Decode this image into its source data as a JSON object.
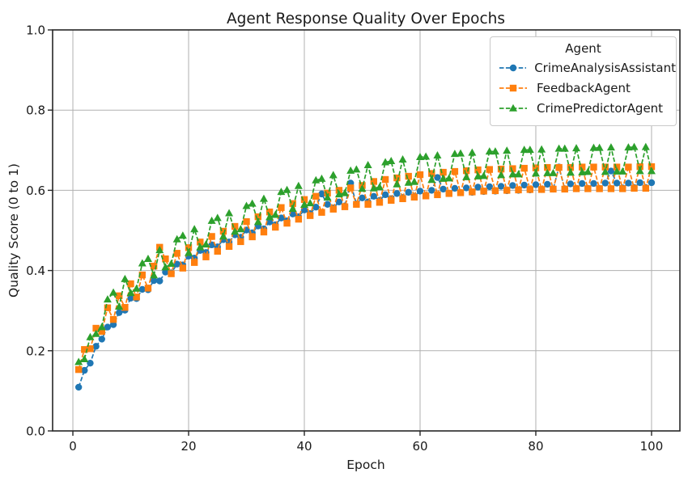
{
  "figure": {
    "background": "#ffffff",
    "text_color": "#1a1a1a",
    "grid_color": "#b0b0b0",
    "spine_color": "#262626"
  },
  "chart_data": {
    "type": "line",
    "title": "Agent Response Quality Over Epochs",
    "xlabel": "Epoch",
    "ylabel": "Quality Score (0 to 1)",
    "xlim": [
      -3.5,
      104.9
    ],
    "ylim": [
      0,
      1.0
    ],
    "x_ticks": [
      0,
      20,
      40,
      60,
      80,
      100
    ],
    "x_tick_labels": [
      "0",
      "20",
      "40",
      "60",
      "80",
      "100"
    ],
    "y_ticks": [
      0.0,
      0.2,
      0.4,
      0.6,
      0.8,
      1.0
    ],
    "y_tick_labels": [
      "0.0",
      "0.2",
      "0.4",
      "0.6",
      "0.8",
      "1.0"
    ],
    "grid": true,
    "legend_title": "Agent",
    "legend_position": "upper right",
    "line_style": "dashed",
    "x": [
      1,
      2,
      3,
      4,
      5,
      6,
      7,
      8,
      9,
      10,
      11,
      12,
      13,
      14,
      15,
      16,
      17,
      18,
      19,
      20,
      21,
      22,
      23,
      24,
      25,
      26,
      27,
      28,
      29,
      30,
      31,
      32,
      33,
      34,
      35,
      36,
      37,
      38,
      39,
      40,
      41,
      42,
      43,
      44,
      45,
      46,
      47,
      48,
      49,
      50,
      51,
      52,
      53,
      54,
      55,
      56,
      57,
      58,
      59,
      60,
      61,
      62,
      63,
      64,
      65,
      66,
      67,
      68,
      69,
      70,
      71,
      72,
      73,
      74,
      75,
      76,
      77,
      78,
      79,
      80,
      81,
      82,
      83,
      84,
      85,
      86,
      87,
      88,
      89,
      90,
      91,
      92,
      93,
      94,
      95,
      96,
      97,
      98,
      99,
      100
    ],
    "series": [
      {
        "name": "CrimeAnalysisAssistant",
        "color": "#1f77b4",
        "marker": "circle",
        "values": [
          0.109,
          0.151,
          0.169,
          0.211,
          0.229,
          0.259,
          0.265,
          0.295,
          0.301,
          0.331,
          0.33,
          0.353,
          0.352,
          0.375,
          0.374,
          0.396,
          0.394,
          0.416,
          0.414,
          0.436,
          0.431,
          0.45,
          0.445,
          0.464,
          0.459,
          0.477,
          0.471,
          0.489,
          0.483,
          0.501,
          0.494,
          0.511,
          0.504,
          0.521,
          0.514,
          0.531,
          0.524,
          0.541,
          0.534,
          0.551,
          0.542,
          0.558,
          0.591,
          0.565,
          0.556,
          0.571,
          0.561,
          0.618,
          0.566,
          0.581,
          0.571,
          0.585,
          0.575,
          0.589,
          0.579,
          0.592,
          0.582,
          0.595,
          0.585,
          0.598,
          0.587,
          0.6,
          0.632,
          0.603,
          0.592,
          0.605,
          0.594,
          0.606,
          0.595,
          0.608,
          0.597,
          0.609,
          0.598,
          0.61,
          0.599,
          0.612,
          0.6,
          0.613,
          0.601,
          0.614,
          0.602,
          0.615,
          0.603,
          0.658,
          0.604,
          0.616,
          0.604,
          0.617,
          0.605,
          0.617,
          0.605,
          0.618,
          0.648,
          0.618,
          0.606,
          0.618,
          0.607,
          0.619,
          0.607,
          0.619
        ]
      },
      {
        "name": "FeedbackAgent",
        "color": "#ff7f0e",
        "marker": "square",
        "values": [
          0.153,
          0.203,
          0.205,
          0.256,
          0.248,
          0.307,
          0.278,
          0.337,
          0.308,
          0.367,
          0.334,
          0.389,
          0.356,
          0.411,
          0.458,
          0.429,
          0.392,
          0.443,
          0.406,
          0.457,
          0.42,
          0.471,
          0.434,
          0.485,
          0.448,
          0.498,
          0.46,
          0.51,
          0.472,
          0.522,
          0.484,
          0.534,
          0.496,
          0.546,
          0.508,
          0.557,
          0.518,
          0.567,
          0.528,
          0.577,
          0.537,
          0.585,
          0.545,
          0.593,
          0.553,
          0.6,
          0.559,
          0.606,
          0.565,
          0.612,
          0.565,
          0.622,
          0.57,
          0.627,
          0.575,
          0.631,
          0.579,
          0.635,
          0.583,
          0.639,
          0.586,
          0.642,
          0.589,
          0.645,
          0.592,
          0.647,
          0.594,
          0.649,
          0.596,
          0.651,
          0.598,
          0.652,
          0.599,
          0.653,
          0.6,
          0.654,
          0.601,
          0.655,
          0.602,
          0.656,
          0.602,
          0.657,
          0.603,
          0.657,
          0.603,
          0.657,
          0.604,
          0.658,
          0.604,
          0.658,
          0.604,
          0.658,
          0.604,
          0.658,
          0.604,
          0.658,
          0.605,
          0.659,
          0.605,
          0.659
        ]
      },
      {
        "name": "CrimePredictorAgent",
        "color": "#2ca02c",
        "marker": "triangle-up",
        "values": [
          0.172,
          0.179,
          0.234,
          0.242,
          0.259,
          0.328,
          0.345,
          0.31,
          0.379,
          0.344,
          0.355,
          0.418,
          0.429,
          0.388,
          0.451,
          0.408,
          0.417,
          0.478,
          0.487,
          0.444,
          0.503,
          0.458,
          0.465,
          0.524,
          0.531,
          0.485,
          0.543,
          0.497,
          0.503,
          0.561,
          0.567,
          0.521,
          0.579,
          0.533,
          0.539,
          0.596,
          0.601,
          0.554,
          0.611,
          0.564,
          0.568,
          0.625,
          0.629,
          0.582,
          0.638,
          0.59,
          0.593,
          0.649,
          0.652,
          0.604,
          0.663,
          0.605,
          0.608,
          0.67,
          0.673,
          0.615,
          0.677,
          0.619,
          0.621,
          0.683,
          0.684,
          0.626,
          0.687,
          0.629,
          0.63,
          0.691,
          0.692,
          0.633,
          0.694,
          0.635,
          0.636,
          0.697,
          0.697,
          0.638,
          0.699,
          0.64,
          0.64,
          0.701,
          0.701,
          0.642,
          0.702,
          0.643,
          0.643,
          0.704,
          0.704,
          0.644,
          0.705,
          0.645,
          0.646,
          0.706,
          0.706,
          0.646,
          0.707,
          0.647,
          0.647,
          0.707,
          0.708,
          0.648,
          0.708,
          0.648
        ]
      }
    ]
  }
}
